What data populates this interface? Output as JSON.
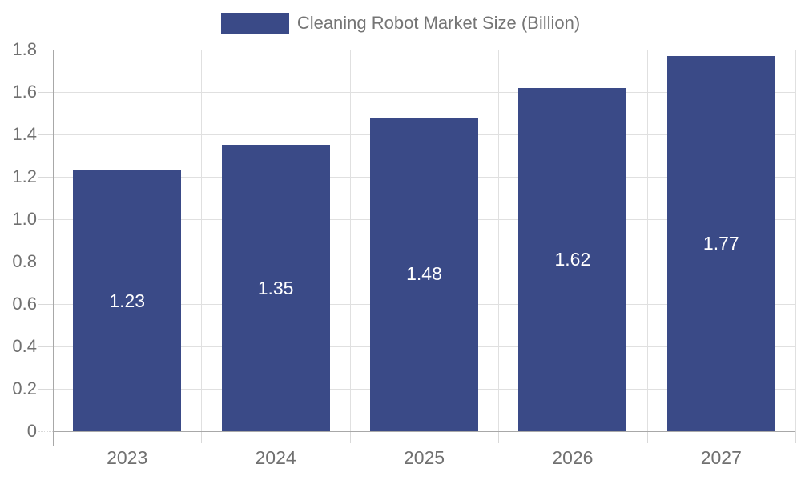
{
  "chart_data": {
    "type": "bar",
    "title": "Cleaning Robot Market Size (Billion)",
    "categories": [
      "2023",
      "2024",
      "2025",
      "2026",
      "2027"
    ],
    "series": [
      {
        "name": "Cleaning Robot Market Size (Billion)",
        "values": [
          1.23,
          1.35,
          1.48,
          1.62,
          1.77
        ]
      }
    ],
    "value_labels": [
      "1.23",
      "1.35",
      "1.48",
      "1.62",
      "1.77"
    ],
    "xlabel": "",
    "ylabel": "",
    "ylim": [
      0,
      1.8
    ],
    "ytick_step": 0.2,
    "ytick_labels": [
      "0",
      "0.2",
      "0.4",
      "0.6",
      "0.8",
      "1.0",
      "1.2",
      "1.4",
      "1.6",
      "1.8"
    ],
    "grid": true,
    "legend_position": "top-center",
    "colors": {
      "bar": "#3A4A87",
      "axis_line": "#a8a8a8",
      "gridline": "#e0e0e0",
      "tick": "#d9d9d9",
      "axis_text": "#707070",
      "legend_text": "#757575",
      "value_label_text": "#ffffff",
      "background": "#ffffff"
    }
  }
}
